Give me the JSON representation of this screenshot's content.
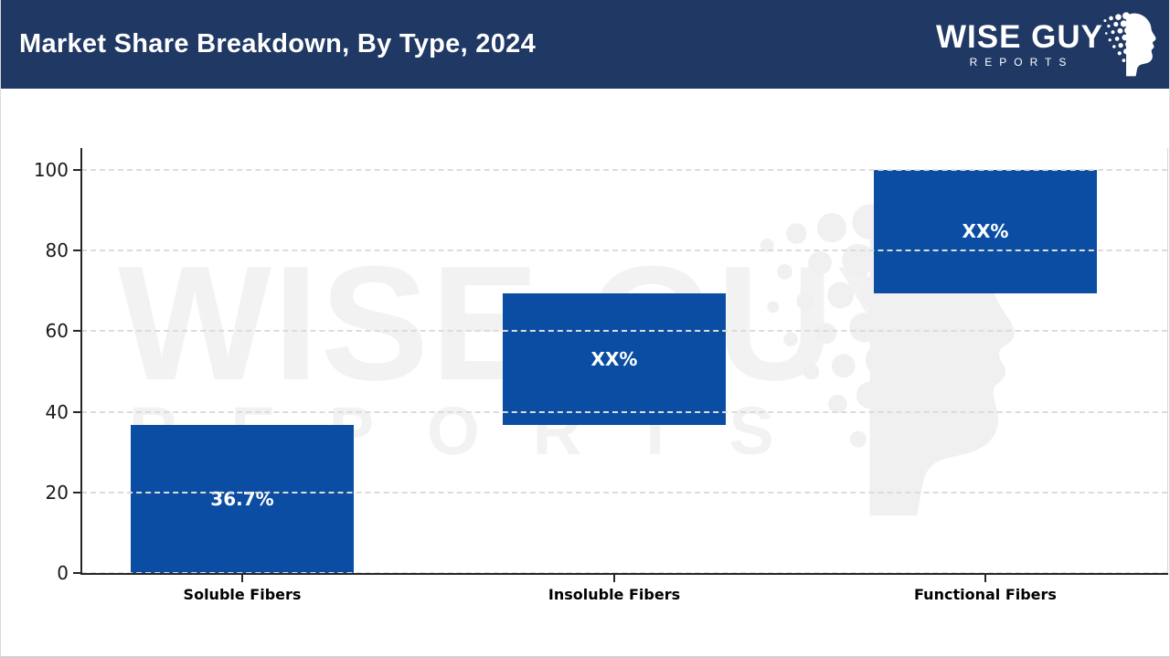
{
  "header": {
    "title": "Market Share Breakdown, By Type, 2024",
    "bg_color": "#1f3864",
    "logo": {
      "line1": "WISE GUY",
      "line2": "REPORTS"
    }
  },
  "watermark": {
    "line1": "WISE GUY",
    "line2": "REPORTS"
  },
  "chart_data": {
    "type": "bar",
    "subtype": "waterfall",
    "title": "Market Share Breakdown, By Type, 2024",
    "categories": [
      "Soluble Fibers",
      "Insoluble Fibers",
      "Functional Fibers"
    ],
    "segments": [
      {
        "category": "Soluble Fibers",
        "start": 0,
        "end": 36.7,
        "label": "36.7%"
      },
      {
        "category": "Insoluble Fibers",
        "start": 36.7,
        "end": 69.4,
        "label": "XX%"
      },
      {
        "category": "Functional Fibers",
        "start": 69.4,
        "end": 100,
        "label": "XX%"
      }
    ],
    "yticks": [
      0,
      20,
      40,
      60,
      80,
      100
    ],
    "ylim": [
      0,
      105
    ],
    "grid": {
      "axis": "y",
      "style": "dashed",
      "color": "#dcdcdc"
    },
    "bar_color": "#0b4da2",
    "bar_label_color": "#ffffff",
    "axis_color": "#262626",
    "legend": null
  }
}
